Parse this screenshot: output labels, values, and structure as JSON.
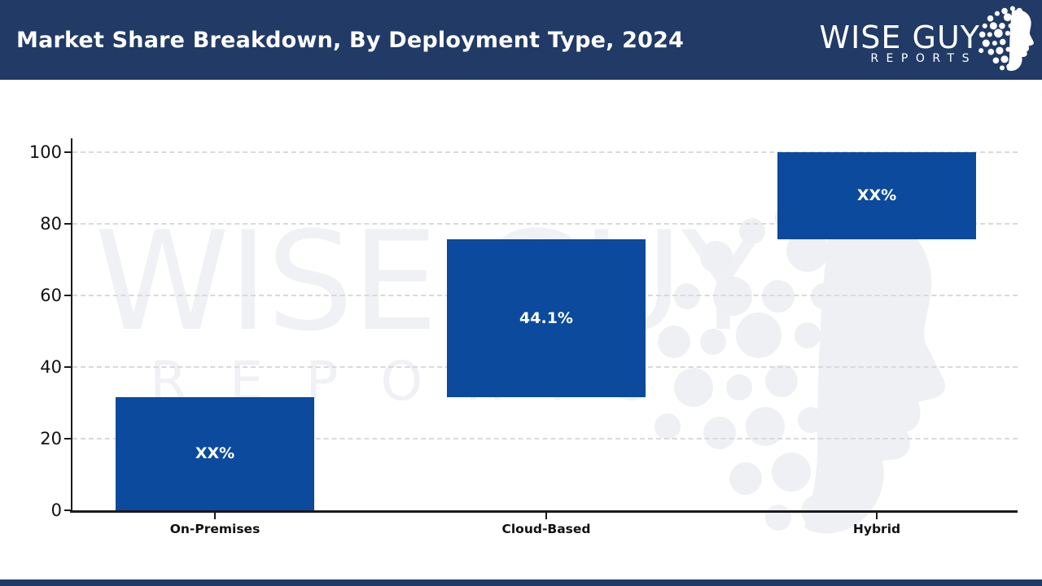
{
  "header": {
    "title": "Market Share Breakdown, By Deployment Type, 2024",
    "logo": {
      "line1": "WISE GUY",
      "line2": "REPORTS"
    }
  },
  "watermark": {
    "line1": "WISE GUY",
    "line2": "REPORTS"
  },
  "chart_data": {
    "type": "bar",
    "variant": "floating-stacked-waterfall",
    "title": "Market Share Breakdown, By Deployment Type, 2024",
    "categories": [
      "On-Premises",
      "Cloud-Based",
      "Hybrid"
    ],
    "segments": [
      {
        "category": "On-Premises",
        "start": 0,
        "end": 31.6,
        "label": "XX%"
      },
      {
        "category": "Cloud-Based",
        "start": 31.6,
        "end": 75.7,
        "label": "44.1%"
      },
      {
        "category": "Hybrid",
        "start": 75.7,
        "end": 100,
        "label": "XX%"
      }
    ],
    "xlabel": "",
    "ylabel": "",
    "ylim": [
      0,
      100
    ],
    "yticks": [
      0,
      20,
      40,
      60,
      80,
      100
    ],
    "grid": "horizontal-dashed",
    "legend": "none",
    "bar_color": "#0b4a9c"
  },
  "colors": {
    "header_bg": "#213a66",
    "footer_bg": "#213a66",
    "bar": "#0b4a9c",
    "grid": "#d9d9d9",
    "axis": "#1a1a1a",
    "watermark": "#f0f1f4",
    "title_text": "#ffffff",
    "bar_label_text": "#ffffff"
  }
}
